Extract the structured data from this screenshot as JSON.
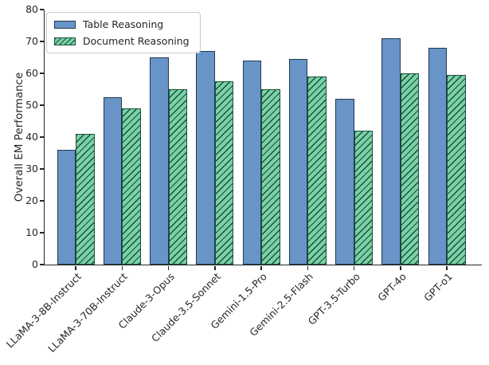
{
  "chart_data": {
    "type": "bar",
    "title": "",
    "xlabel": "",
    "ylabel": "Overall EM Performance",
    "ylim": [
      0,
      80
    ],
    "yticks": [
      0,
      10,
      20,
      30,
      40,
      50,
      60,
      70,
      80
    ],
    "grid": false,
    "legend_position": "upper left",
    "categories": [
      "LLaMA-3-8B-Instruct",
      "LLaMA-3-70B-Instruct",
      "Claude-3-Opus",
      "Claude-3.5-Sonnet",
      "Gemini-1.5-Pro",
      "Gemini-2.5-Flash",
      "GPT-3.5-Turbo",
      "GPT-4o",
      "GPT-o1"
    ],
    "series": [
      {
        "name": "Table Reasoning",
        "color": "#6994C8",
        "hatch": null,
        "values": [
          36,
          52.5,
          65,
          67,
          64,
          64.5,
          52,
          71,
          68
        ]
      },
      {
        "name": "Document Reasoning",
        "color": "#78D2A7",
        "hatch": "//",
        "values": [
          41,
          49,
          55,
          57.5,
          55,
          59,
          42,
          60,
          59.5
        ]
      }
    ],
    "bar_edge_color": "#262626"
  }
}
